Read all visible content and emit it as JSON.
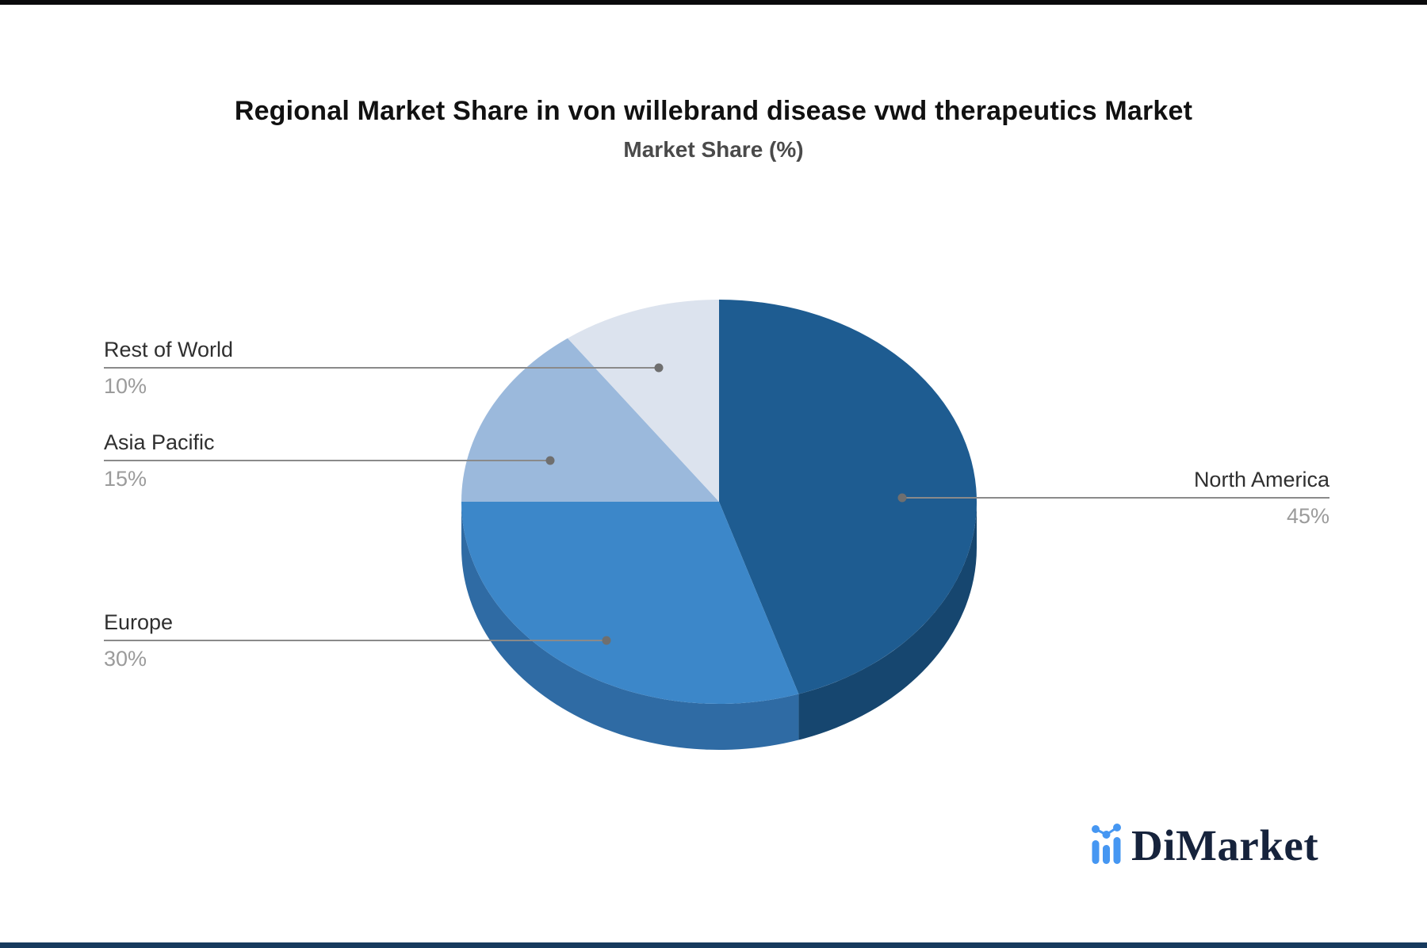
{
  "page": {
    "background": "#ffffff"
  },
  "chart_data": {
    "type": "pie",
    "title": "Regional Market Share in von willebrand disease vwd therapeutics Market",
    "subtitle": "Market Share (%)",
    "direction": "clockwise",
    "start_angle_deg": 0,
    "style": "3d-pie",
    "legend_position": "callout-labels",
    "slices": [
      {
        "label": "North America",
        "value": 45,
        "display": "45%",
        "color": "#1E5C91",
        "side_color": "#16466F"
      },
      {
        "label": "Europe",
        "value": 30,
        "display": "30%",
        "color": "#3C87C9",
        "side_color": "#2F6BA4"
      },
      {
        "label": "Asia Pacific",
        "value": 15,
        "display": "15%",
        "color": "#9BB9DC",
        "side_color": "#7E9CC4"
      },
      {
        "label": "Rest of World",
        "value": 10,
        "display": "10%",
        "color": "#DCE3EE",
        "side_color": "#B9C6DB"
      }
    ]
  },
  "colors": {
    "title": "#111111",
    "subtitle": "#4A4A4A",
    "label": "#2F2F2F",
    "value": "#9B9B9B",
    "leader_line": "#8A8A8A",
    "leader_dot": "#6F6F6F"
  },
  "brand": {
    "logo_text": "DiMarket",
    "logo_color": "#16233C",
    "icon_color": "#4697F2",
    "icon_name": "bar-chart-trend-icon"
  }
}
